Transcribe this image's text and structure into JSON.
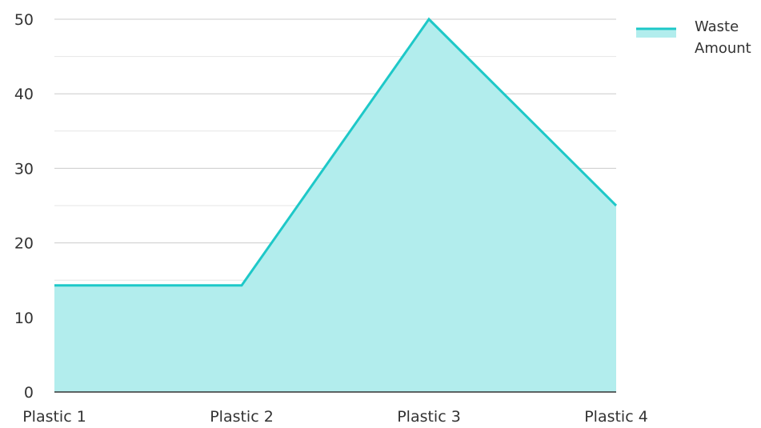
{
  "chart_data": {
    "type": "area",
    "categories": [
      "Plastic 1",
      "Plastic 2",
      "Plastic 3",
      "Plastic 4"
    ],
    "series": [
      {
        "name": "Waste Amount",
        "legend_lines": [
          "Waste",
          "Amount"
        ],
        "values": [
          14.3,
          14.3,
          50,
          25
        ],
        "line_color": "#1ec8c8",
        "fill_color": "#b2eded"
      }
    ],
    "title": "",
    "xlabel": "",
    "ylabel": "",
    "ylim": [
      0,
      50
    ],
    "yticks": [
      0,
      10,
      20,
      30,
      40,
      50
    ],
    "minor_ytick_step": 5,
    "grid": true,
    "legend_position": "top-right"
  },
  "colors": {
    "grid_major": "#cccccc",
    "grid_minor": "#e6e6e6",
    "axis": "#333333",
    "tick_text": "#333333"
  }
}
